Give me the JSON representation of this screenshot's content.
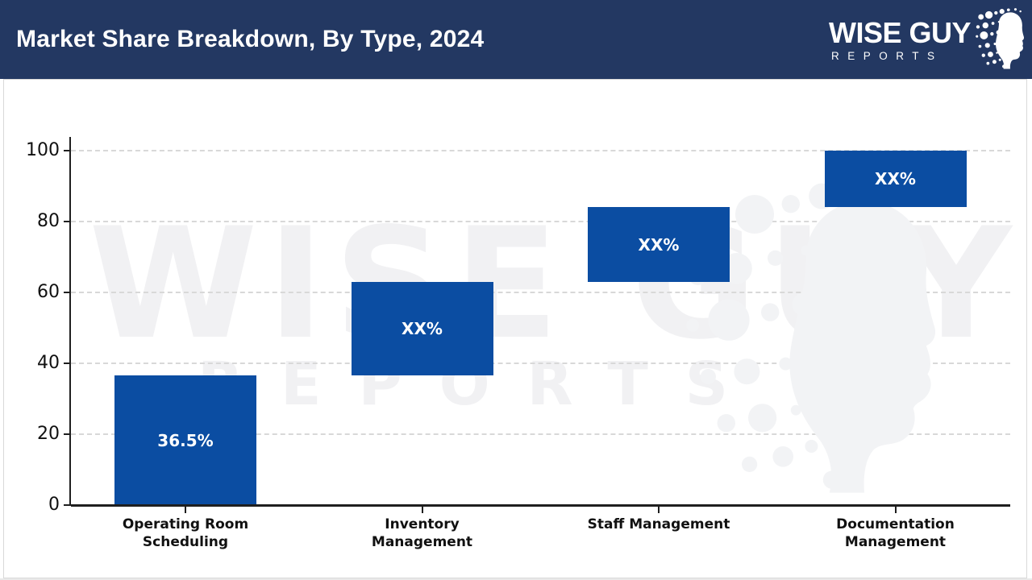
{
  "header": {
    "title": "Market Share Breakdown, By Type, 2024",
    "logo": {
      "line1": "WISE GUY",
      "line2": "REPORTS",
      "icon": "wiseguy-face-icon"
    }
  },
  "watermark": {
    "line1": "WISE GUY",
    "line2": "REPORTS"
  },
  "colors": {
    "header_bg": "#233862",
    "bar": "#0b4da2",
    "bar_label": "#ffffff",
    "axis": "#1f1f1f",
    "gridline": "#d8d8d8",
    "watermark": "#f1f1f3"
  },
  "chart_data": {
    "type": "bar",
    "subtype": "waterfall",
    "title": "Market Share Breakdown, By Type, 2024",
    "xlabel": "",
    "ylabel": "",
    "ylim": [
      0,
      100
    ],
    "yticks": [
      0,
      20,
      40,
      60,
      80,
      100
    ],
    "grid": "horizontal dashed",
    "legend": "none",
    "bar_color": "#0b4da2",
    "label_color": "#ffffff",
    "categories": [
      "Operating Room\nScheduling",
      "Inventory\nManagement",
      "Staff Management",
      "Documentation\nManagement"
    ],
    "segments": [
      {
        "category": "Operating Room Scheduling",
        "start": 0,
        "end": 36.5,
        "value": 36.5,
        "label": "36.5%"
      },
      {
        "category": "Inventory Management",
        "start": 36.5,
        "end": 63,
        "value": 26.5,
        "label": "XX%"
      },
      {
        "category": "Staff Management",
        "start": 63,
        "end": 84,
        "value": 21,
        "label": "XX%"
      },
      {
        "category": "Documentation Management",
        "start": 84,
        "end": 100,
        "value": 16,
        "label": "XX%"
      }
    ]
  }
}
